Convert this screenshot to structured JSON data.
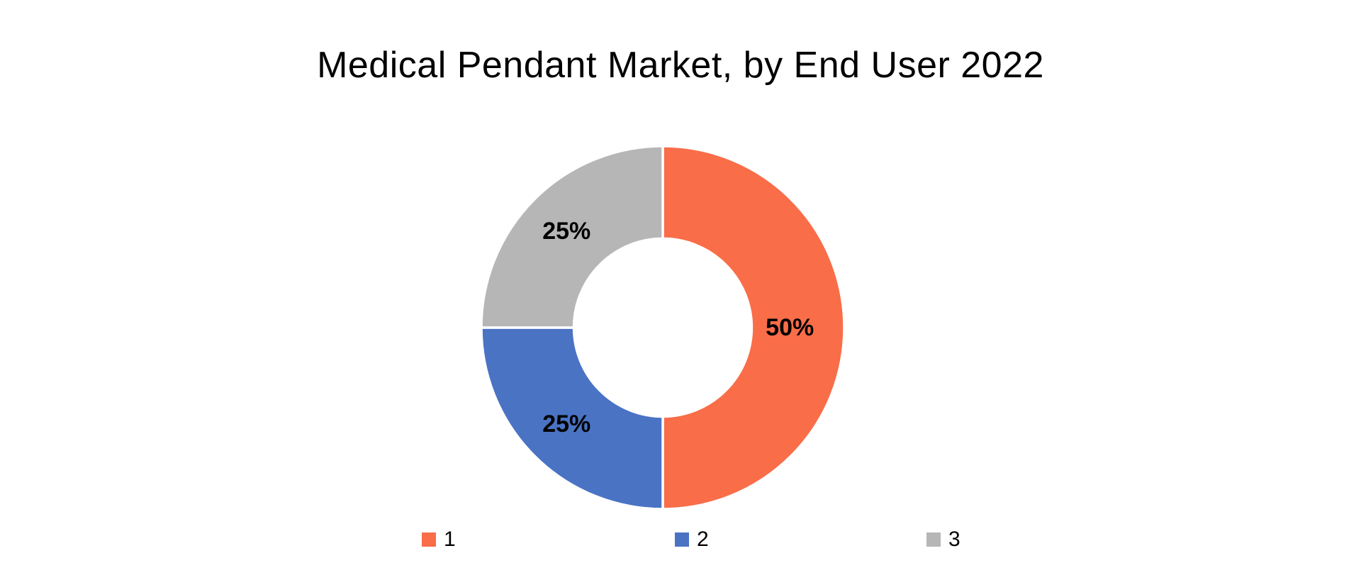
{
  "chart_data": {
    "type": "pie",
    "subtype": "donut",
    "title": "Medical Pendant Market, by End User 2022",
    "categories": [
      "1",
      "2",
      "3"
    ],
    "values": [
      50,
      25,
      25
    ],
    "data_labels": [
      "50%",
      "25%",
      "25%"
    ],
    "colors": [
      "#F96D48",
      "#4A73C4",
      "#B6B6B6"
    ],
    "start_angle_deg": 0,
    "direction": "clockwise",
    "hole_ratio": 0.49,
    "legend_position": "bottom",
    "data_label_color": "#000000",
    "title_color": "#000000",
    "background_color": "#FFFFFF",
    "slice_border_color": "#FFFFFF"
  }
}
